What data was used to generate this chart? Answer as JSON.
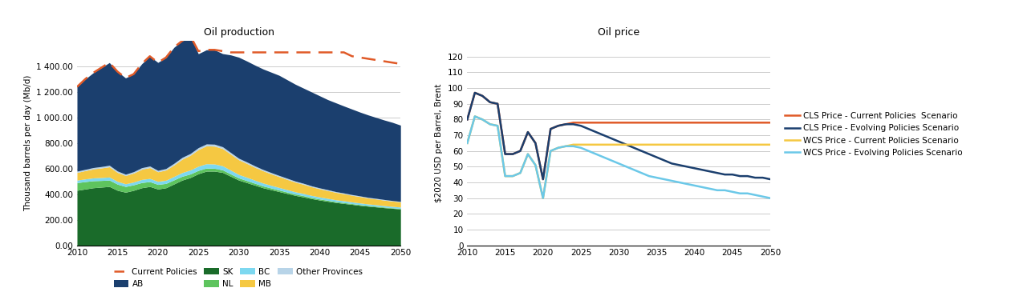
{
  "prod_years": [
    2010,
    2011,
    2012,
    2013,
    2014,
    2015,
    2016,
    2017,
    2018,
    2019,
    2020,
    2021,
    2022,
    2023,
    2024,
    2025,
    2026,
    2027,
    2028,
    2029,
    2030,
    2031,
    2032,
    2033,
    2034,
    2035,
    2036,
    2037,
    2038,
    2039,
    2040,
    2041,
    2042,
    2043,
    2044,
    2045,
    2046,
    2047,
    2048,
    2049,
    2050
  ],
  "prod_SK": [
    430,
    440,
    450,
    455,
    460,
    430,
    415,
    430,
    450,
    460,
    440,
    450,
    480,
    510,
    530,
    560,
    580,
    580,
    570,
    540,
    510,
    490,
    470,
    450,
    435,
    420,
    405,
    390,
    378,
    365,
    354,
    344,
    335,
    327,
    320,
    312,
    306,
    300,
    294,
    289,
    284
  ],
  "prod_NL": [
    60,
    58,
    55,
    52,
    50,
    48,
    45,
    43,
    41,
    38,
    36,
    34,
    32,
    30,
    28,
    26,
    24,
    22,
    20,
    18,
    17,
    16,
    15,
    14,
    13,
    12,
    11,
    10,
    10,
    9,
    8,
    8,
    7,
    7,
    6,
    6,
    5,
    5,
    5,
    4,
    4
  ],
  "prod_BC": [
    20,
    21,
    22,
    23,
    24,
    22,
    21,
    22,
    24,
    25,
    24,
    25,
    27,
    29,
    31,
    33,
    34,
    34,
    32,
    30,
    27,
    26,
    24,
    23,
    21,
    20,
    19,
    18,
    17,
    16,
    16,
    15,
    14,
    14,
    13,
    13,
    12,
    12,
    11,
    11,
    11
  ],
  "prod_MB": [
    60,
    65,
    70,
    75,
    80,
    70,
    65,
    70,
    80,
    85,
    75,
    80,
    90,
    105,
    115,
    130,
    140,
    140,
    135,
    125,
    115,
    108,
    101,
    96,
    90,
    85,
    80,
    76,
    72,
    68,
    64,
    61,
    58,
    55,
    52,
    50,
    47,
    45,
    43,
    42,
    40
  ],
  "prod_Other": [
    10,
    10,
    11,
    11,
    12,
    11,
    10,
    11,
    12,
    12,
    11,
    12,
    13,
    14,
    14,
    15,
    15,
    15,
    14,
    13,
    12,
    12,
    11,
    10,
    10,
    9,
    9,
    8,
    8,
    7,
    7,
    7,
    6,
    6,
    6,
    5,
    5,
    5,
    5,
    4,
    4
  ],
  "prod_AB": [
    660,
    706,
    742,
    774,
    804,
    779,
    754,
    764,
    813,
    860,
    845,
    869,
    908,
    912,
    918,
    735,
    737,
    739,
    729,
    764,
    791,
    790,
    789,
    787,
    786,
    784,
    771,
    758,
    745,
    735,
    721,
    705,
    695,
    681,
    669,
    656,
    645,
    633,
    622,
    612,
    597
  ],
  "prod_CP": [
    1240,
    1300,
    1350,
    1390,
    1430,
    1360,
    1310,
    1340,
    1420,
    1480,
    1430,
    1470,
    1550,
    1600,
    1640,
    1520,
    1530,
    1530,
    1520,
    1510,
    1510,
    1510,
    1510,
    1510,
    1510,
    1510,
    1510,
    1510,
    1510,
    1510,
    1510,
    1510,
    1510,
    1510,
    1480,
    1470,
    1460,
    1450,
    1440,
    1430,
    1420
  ],
  "price_years": [
    2010,
    2011,
    2012,
    2013,
    2014,
    2015,
    2016,
    2017,
    2018,
    2019,
    2020,
    2021,
    2022,
    2023,
    2024,
    2025,
    2026,
    2027,
    2028,
    2029,
    2030,
    2031,
    2032,
    2033,
    2034,
    2035,
    2036,
    2037,
    2038,
    2039,
    2040,
    2041,
    2042,
    2043,
    2044,
    2045,
    2046,
    2047,
    2048,
    2049,
    2050
  ],
  "cls_cp": [
    80,
    97,
    95,
    91,
    90,
    58,
    58,
    60,
    72,
    65,
    42,
    74,
    76,
    77,
    78,
    78,
    78,
    78,
    78,
    78,
    78,
    78,
    78,
    78,
    78,
    78,
    78,
    78,
    78,
    78,
    78,
    78,
    78,
    78,
    78,
    78,
    78,
    78,
    78,
    78,
    78
  ],
  "cls_ep": [
    80,
    97,
    95,
    91,
    90,
    58,
    58,
    60,
    72,
    65,
    42,
    74,
    76,
    77,
    77,
    76,
    74,
    72,
    70,
    68,
    66,
    64,
    62,
    60,
    58,
    56,
    54,
    52,
    51,
    50,
    49,
    48,
    47,
    46,
    45,
    45,
    44,
    44,
    43,
    43,
    42
  ],
  "wcs_cp": [
    65,
    82,
    80,
    77,
    76,
    44,
    44,
    46,
    58,
    51,
    30,
    60,
    62,
    63,
    64,
    64,
    64,
    64,
    64,
    64,
    64,
    64,
    64,
    64,
    64,
    64,
    64,
    64,
    64,
    64,
    64,
    64,
    64,
    64,
    64,
    64,
    64,
    64,
    64,
    64,
    64
  ],
  "wcs_ep": [
    65,
    82,
    80,
    77,
    76,
    44,
    44,
    46,
    58,
    51,
    30,
    60,
    62,
    63,
    63,
    62,
    60,
    58,
    56,
    54,
    52,
    50,
    48,
    46,
    44,
    43,
    42,
    41,
    40,
    39,
    38,
    37,
    36,
    35,
    35,
    34,
    33,
    33,
    32,
    31,
    30
  ],
  "color_AB": "#1b3f6e",
  "color_SK": "#1a6b2a",
  "color_NL": "#5ec45e",
  "color_BC": "#7dd8f0",
  "color_MB": "#f5c842",
  "color_Other": "#b8d4e8",
  "color_CP_line": "#e05a28",
  "color_cls_cp": "#e05a28",
  "color_cls_ep": "#1b3f6e",
  "color_wcs_cp": "#f5c842",
  "color_wcs_ep": "#6bc8e8",
  "prod_title": "Oil production",
  "prod_ylabel": "Thousand barrels per day (Mb/d)",
  "prod_yticks": [
    0,
    200,
    400,
    600,
    800,
    1000,
    1200,
    1400
  ],
  "prod_yticklabels": [
    "0.00",
    "200.00",
    "400.00",
    "600.00",
    "800.00",
    "1 000.00",
    "1 200.00",
    "1 400.00"
  ],
  "price_title": "Oil price",
  "price_ylabel": "$2020 USD per Barrel, Brent",
  "price_yticks": [
    0,
    10,
    20,
    30,
    40,
    50,
    60,
    70,
    80,
    90,
    100,
    110,
    120
  ],
  "legend2_labels": [
    "CLS Price - Current Policies  Scenario",
    "CLS Price - Evolving Policies Scenario",
    "WCS Price - Current Policies Scenario",
    "WCS Price - Evolving Policies Scenario"
  ]
}
